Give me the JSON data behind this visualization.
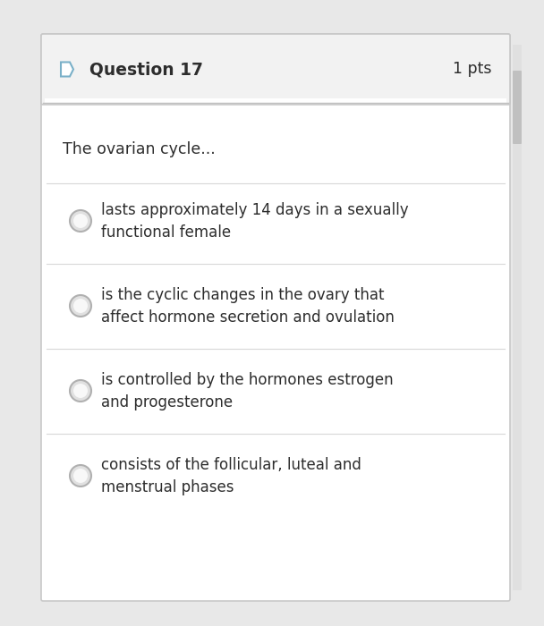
{
  "background_color": "#e8e8e8",
  "card_color": "#ffffff",
  "header_color": "#f2f2f2",
  "header_title": "Question 17",
  "header_pts": "1 pts",
  "header_title_fontsize": 13.5,
  "header_pts_fontsize": 12.5,
  "question_text": "The ovarian cycle...",
  "question_fontsize": 12.5,
  "options": [
    [
      "lasts approximately 14 days in a sexually",
      "functional female"
    ],
    [
      "is the cyclic changes in the ovary that",
      "affect hormone secretion and ovulation"
    ],
    [
      "is controlled by the hormones estrogen",
      "and progesterone"
    ],
    [
      "consists of the follicular, luteal and",
      "menstrual phases"
    ]
  ],
  "option_fontsize": 12,
  "text_color": "#2d2d2d",
  "border_color": "#c8c8c8",
  "header_border_color": "#c0c0c0",
  "divider_color": "#d8d8d8",
  "radio_edge_color": "#b0b0b0",
  "radio_fill_outer": "#e0e0e0",
  "radio_fill_inner": "#f8f8f8",
  "scrollbar_track": "#e0e0e0",
  "scrollbar_thumb": "#c0c0c0",
  "icon_color": "#7ab0c8",
  "fig_width": 6.08,
  "fig_height": 7.0,
  "dpi": 100
}
